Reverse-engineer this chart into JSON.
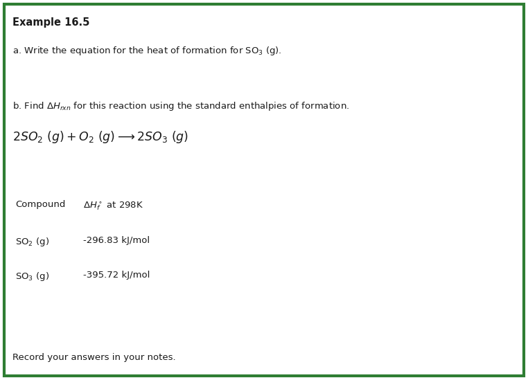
{
  "title": "Example 16.5",
  "line_a": "a. Write the equation for the heat of formation for SO$_3$ (g).",
  "line_b": "b. Find $\\Delta H_{rxn}$ for this reaction using the standard enthalpies of formation.",
  "reaction": "$2SO_2\\ (g) + O_2\\ (g) \\longrightarrow 2SO_3\\ (g)$",
  "compound_header": "Compound",
  "dHf_header": "$\\Delta H_f^\\circ$ at 298K",
  "row1_compound": "SO$_2$ (g)",
  "row1_value": "-296.83 kJ/mol",
  "row2_compound": "SO$_3$ (g)",
  "row2_value": "-395.72 kJ/mol",
  "footer": "Record your answers in your notes.",
  "border_color": "#2e7d32",
  "bg_color": "#ffffff",
  "text_color": "#1a1a1a",
  "font_size_title": 10.5,
  "font_size_body": 9.5,
  "font_size_reaction": 12.5
}
